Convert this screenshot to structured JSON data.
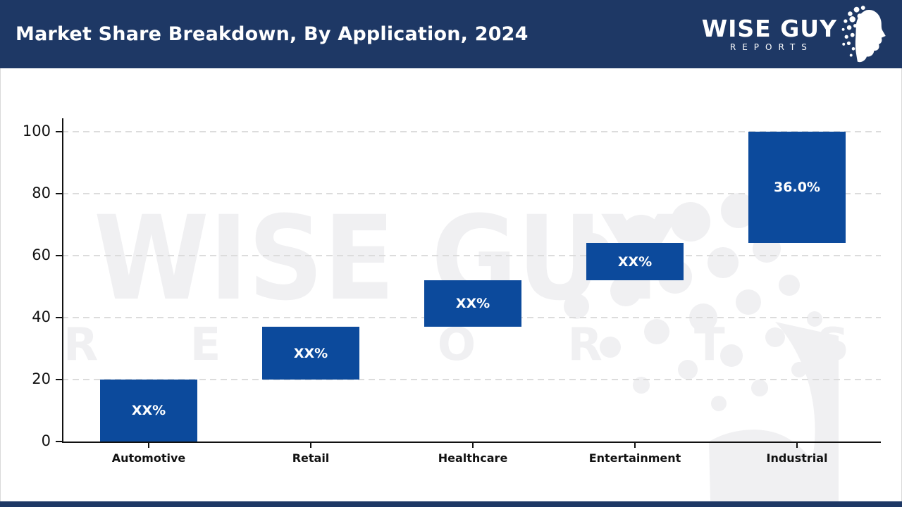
{
  "header": {
    "title": "Market Share Breakdown, By Application, 2024",
    "logo": {
      "name": "WISE GUY",
      "sub": "REPORTS"
    }
  },
  "watermark": {
    "line1": "WISE GUY",
    "line2": "R E P O R T S"
  },
  "colors": {
    "header_bg": "#1e3865",
    "bar": "#0c4a9c",
    "bar_label": "#ffffff",
    "grid": "#dcdcdc",
    "axis": "#111111",
    "watermark": "#f0f0f2"
  },
  "chart_data": {
    "type": "bar",
    "variant": "floating waterfall bars",
    "title": "Market Share Breakdown, By Application, 2024",
    "categories": [
      "Automotive",
      "Retail",
      "Healthcare",
      "Entertainment",
      "Industrial"
    ],
    "segments": [
      {
        "category": "Automotive",
        "start": 0,
        "end": 20,
        "value": 20,
        "label": "XX%"
      },
      {
        "category": "Retail",
        "start": 20,
        "end": 37,
        "value": 17,
        "label": "XX%"
      },
      {
        "category": "Healthcare",
        "start": 37,
        "end": 52,
        "value": 15,
        "label": "XX%"
      },
      {
        "category": "Entertainment",
        "start": 52,
        "end": 64,
        "value": 12,
        "label": "XX%"
      },
      {
        "category": "Industrial",
        "start": 64,
        "end": 100,
        "value": 36,
        "label": "36.0%"
      }
    ],
    "xlabel": "",
    "ylabel": "",
    "ylim": [
      0,
      100
    ],
    "yticks": [
      0,
      20,
      40,
      60,
      80,
      100
    ],
    "grid": "horizontal dashed",
    "legend": "none"
  }
}
